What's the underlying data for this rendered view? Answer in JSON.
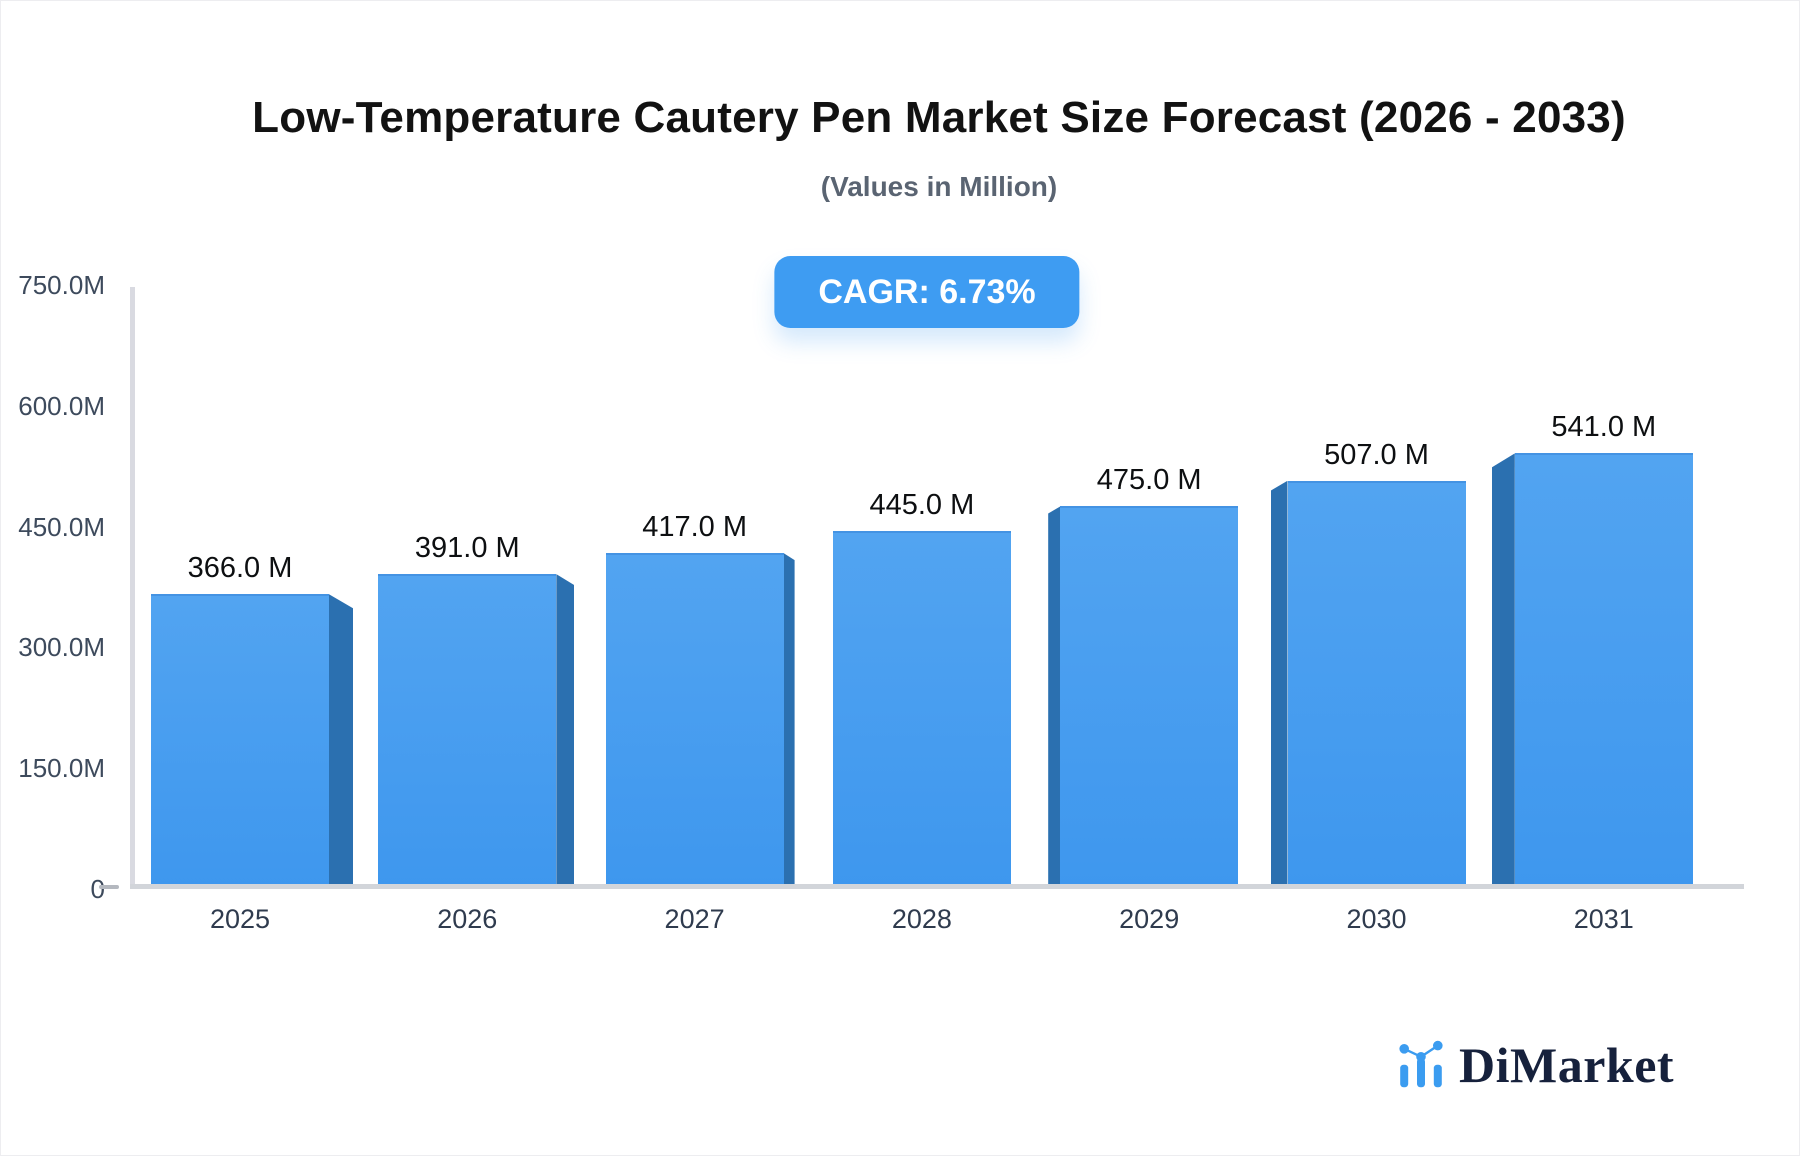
{
  "header": {
    "title": "Low-Temperature Cautery Pen Market Size Forecast (2026 - 2033)",
    "subtitle": "(Values in Million)",
    "badge_label": "CAGR: 6.73%"
  },
  "chart_data": {
    "type": "bar",
    "title": "Low-Temperature Cautery Pen Market Size Forecast (2026 - 2033)",
    "subtitle": "(Values in Million)",
    "unit": "Million",
    "cagr": "6.73%",
    "categories": [
      "2025",
      "2026",
      "2027",
      "2028",
      "2029",
      "2030",
      "2031"
    ],
    "values": [
      366.0,
      391.0,
      417.0,
      445.0,
      475.0,
      507.0,
      541.0
    ],
    "value_labels": [
      "366.0 M",
      "391.0 M",
      "417.0 M",
      "445.0 M",
      "475.0 M",
      "507.0 M",
      "541.0 M"
    ],
    "ylim": [
      0,
      750
    ],
    "y_tick_values": [
      750,
      600,
      450,
      300,
      150,
      0
    ],
    "y_tick_labels": [
      "750.0M",
      "600.0M",
      "450.0M",
      "300.0M",
      "150.0M",
      "0"
    ],
    "xlabel": "",
    "ylabel": "",
    "grid": false,
    "legend": "none",
    "style": "3d-perspective-bars"
  },
  "colors": {
    "bar_top": "#52a4f1",
    "bar_bottom": "#3e97ee",
    "bar_side_face": "#2b70b0",
    "badge_bg": "#3e9cf2",
    "axis_line": "#d9dae1",
    "baseline": "#d2d5da",
    "title_text": "#121212",
    "subtitle_text": "#5a6472",
    "tick_text": "#3d4a5c",
    "logo_blue": "#3b9cf0",
    "logo_navy": "#16213c"
  },
  "logo": {
    "text": "DiMarket",
    "icon": "bar-chart-icon"
  }
}
